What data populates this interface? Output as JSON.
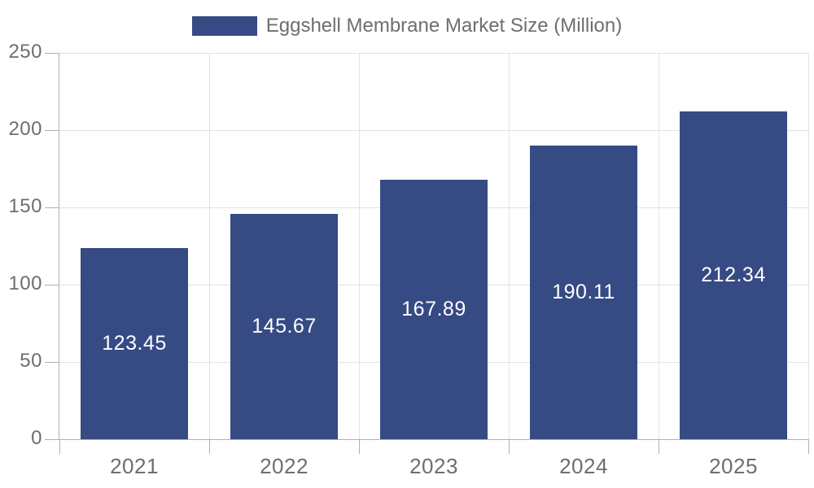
{
  "chart_data": {
    "type": "bar",
    "title": "",
    "legend": "Eggshell Membrane Market Size (Million)",
    "categories": [
      "2021",
      "2022",
      "2023",
      "2024",
      "2025"
    ],
    "series": [
      {
        "name": "Eggshell Membrane Market Size (Million)",
        "values": [
          123.45,
          145.67,
          167.89,
          190.11,
          212.34
        ]
      }
    ],
    "value_labels": [
      "123.45",
      "145.67",
      "167.89",
      "190.11",
      "212.34"
    ],
    "xlabel": "",
    "ylabel": "",
    "ylim": [
      0,
      250
    ],
    "yticks": [
      0,
      50,
      100,
      150,
      200,
      250
    ],
    "grid": true,
    "legend_position": "top-center",
    "colors": {
      "bar": "#364a84",
      "bar_value_text": "#ffffff",
      "axis_text": "#6e6e6e",
      "grid_line": "#e2e2e6",
      "axis_line": "#b0b0b4",
      "background": "#ffffff"
    }
  }
}
